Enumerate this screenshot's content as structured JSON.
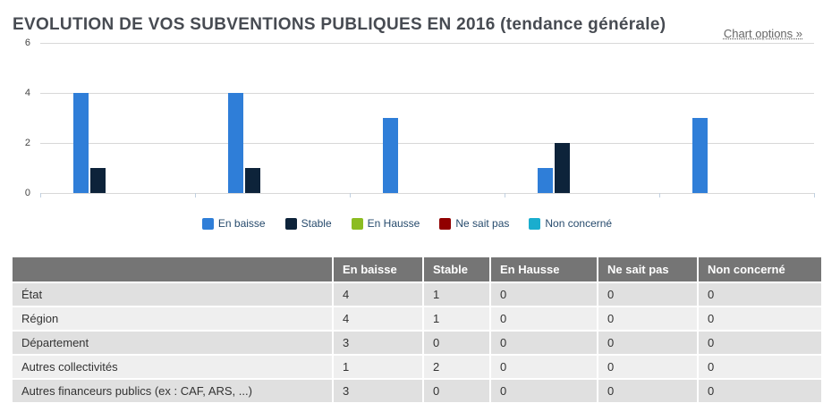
{
  "header": {
    "title": "EVOLUTION DE VOS SUBVENTIONS PUBLIQUES EN 2016 (tendance générale)",
    "chart_options_label": "Chart options »"
  },
  "chart_data": {
    "type": "bar",
    "title": "EVOLUTION DE VOS SUBVENTIONS PUBLIQUES EN 2016 (tendance générale)",
    "categories": [
      "État",
      "Région",
      "Département",
      "Autres collectivités",
      "Autres financeurs publics (ex : CAF, ARS, ...)"
    ],
    "series": [
      {
        "name": "En baisse",
        "color": "#2f7ed8",
        "values": [
          4,
          4,
          3,
          1,
          3
        ]
      },
      {
        "name": "Stable",
        "color": "#0d233a",
        "values": [
          1,
          1,
          0,
          2,
          0
        ]
      },
      {
        "name": "En Hausse",
        "color": "#8bbc21",
        "values": [
          0,
          0,
          0,
          0,
          0
        ]
      },
      {
        "name": "Ne sait pas",
        "color": "#910000",
        "values": [
          0,
          0,
          0,
          0,
          0
        ]
      },
      {
        "name": "Non concerné",
        "color": "#1aadce",
        "values": [
          0,
          0,
          0,
          0,
          0
        ]
      }
    ],
    "xlabel": "",
    "ylabel": "",
    "ylim": [
      0,
      6
    ],
    "yticks": [
      0,
      2,
      4,
      6
    ],
    "grid": true,
    "legend_position": "bottom",
    "x_tick_labels_shown": false
  },
  "table": {
    "columns": [
      "",
      "En baisse",
      "Stable",
      "En Hausse",
      "Ne sait pas",
      "Non concerné"
    ],
    "rows": [
      {
        "label": "État",
        "values": [
          "4",
          "1",
          "0",
          "0",
          "0"
        ]
      },
      {
        "label": "Région",
        "values": [
          "4",
          "1",
          "0",
          "0",
          "0"
        ]
      },
      {
        "label": "Département",
        "values": [
          "3",
          "0",
          "0",
          "0",
          "0"
        ]
      },
      {
        "label": "Autres collectivités",
        "values": [
          "1",
          "2",
          "0",
          "0",
          "0"
        ]
      },
      {
        "label": "Autres financeurs publics (ex : CAF, ARS, ...)",
        "values": [
          "3",
          "0",
          "0",
          "0",
          "0"
        ]
      }
    ]
  }
}
